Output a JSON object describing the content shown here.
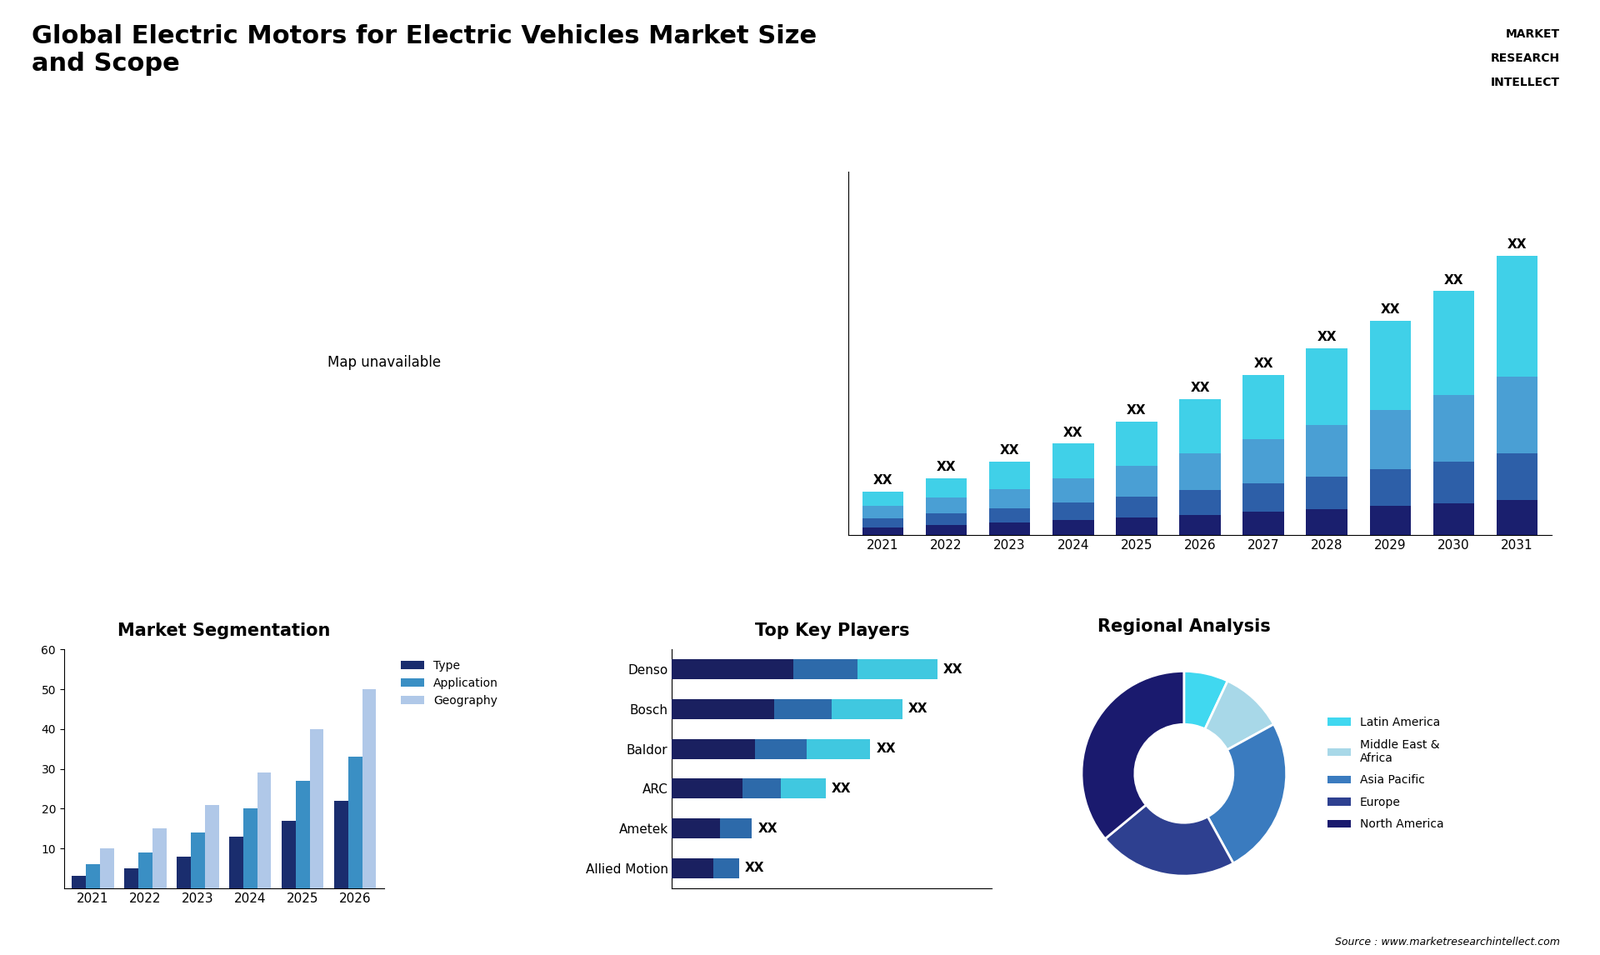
{
  "title": "Global Electric Motors for Electric Vehicles Market Size\nand Scope",
  "logo": [
    "MARKET",
    "RESEARCH",
    "INTELLECT"
  ],
  "map_note": "Map unavailable",
  "source": "Source : www.marketresearchintellect.com",
  "chart_data": [
    {
      "type": "bar",
      "stacked": true,
      "tick_labels": "x",
      "categories": [
        "2021",
        "2022",
        "2023",
        "2024",
        "2025",
        "2026",
        "2027",
        "2028",
        "2029",
        "2030",
        "2031"
      ],
      "series": [
        {
          "color": "#1a1f6e",
          "values": [
            1.5,
            2.0,
            2.5,
            3.0,
            3.5,
            4.0,
            4.6,
            5.2,
            5.8,
            6.4,
            7.0
          ]
        },
        {
          "color": "#2d5fa8",
          "values": [
            1.8,
            2.3,
            2.8,
            3.5,
            4.2,
            5.0,
            5.8,
            6.6,
            7.5,
            8.4,
            9.5
          ]
        },
        {
          "color": "#4a9fd4",
          "values": [
            2.5,
            3.2,
            4.0,
            5.0,
            6.2,
            7.5,
            9.0,
            10.5,
            12.0,
            13.5,
            15.5
          ]
        },
        {
          "color": "#40d0e8",
          "values": [
            3.0,
            4.0,
            5.5,
            7.0,
            9.0,
            11.0,
            13.0,
            15.5,
            18.0,
            21.0,
            24.5
          ]
        }
      ],
      "total_labels": [
        "XX",
        "XX",
        "XX",
        "XX",
        "XX",
        "XX",
        "XX",
        "XX",
        "XX",
        "XX",
        "XX"
      ],
      "ylim": [
        0,
        73.45
      ]
    },
    {
      "type": "bar",
      "title": "Market Segmentation",
      "categories": [
        "2021",
        "2022",
        "2023",
        "2024",
        "2025",
        "2026"
      ],
      "series": [
        {
          "name": "Type",
          "color": "#1a2d6e",
          "values": [
            3,
            5,
            8,
            13,
            17,
            22
          ]
        },
        {
          "name": "Application",
          "color": "#3a8fc4",
          "values": [
            6,
            9,
            14,
            20,
            27,
            33
          ]
        },
        {
          "name": "Geography",
          "color": "#b0c8e8",
          "values": [
            10,
            15,
            21,
            29,
            40,
            50
          ]
        }
      ],
      "ylim": [
        0,
        60
      ],
      "yticks": [
        10,
        20,
        30,
        40,
        50,
        60
      ],
      "legend": "upper left"
    },
    {
      "type": "bar",
      "title": "Top Key Players",
      "orientation": "horizontal",
      "stacked": true,
      "tick_labels": "y",
      "categories": [
        "Denso",
        "Bosch",
        "Baldor",
        "ARC",
        "Ametek",
        "Allied Motion"
      ],
      "series": [
        {
          "color": "#1a2060",
          "values": [
            38,
            32,
            26,
            22,
            15,
            13
          ]
        },
        {
          "color": "#2d6aaa",
          "values": [
            20,
            18,
            16,
            12,
            10,
            8
          ]
        },
        {
          "color": "#40c8e0",
          "values": [
            25,
            22,
            20,
            14,
            0,
            0
          ]
        }
      ],
      "total_labels": [
        "XX",
        "XX",
        "XX",
        "XX",
        "XX",
        "XX"
      ],
      "xlim": [
        0,
        100
      ]
    },
    {
      "type": "pie",
      "title": "Regional Analysis",
      "categories": [
        "Latin America",
        "Middle East &\nAfrica",
        "Asia Pacific",
        "Europe",
        "North America"
      ],
      "values": [
        7,
        10,
        25,
        22,
        36
      ],
      "colors": [
        "#40d8f0",
        "#a8d8e8",
        "#3a7bbf",
        "#2e4090",
        "#1a1a6e"
      ],
      "legend": "center left"
    }
  ]
}
